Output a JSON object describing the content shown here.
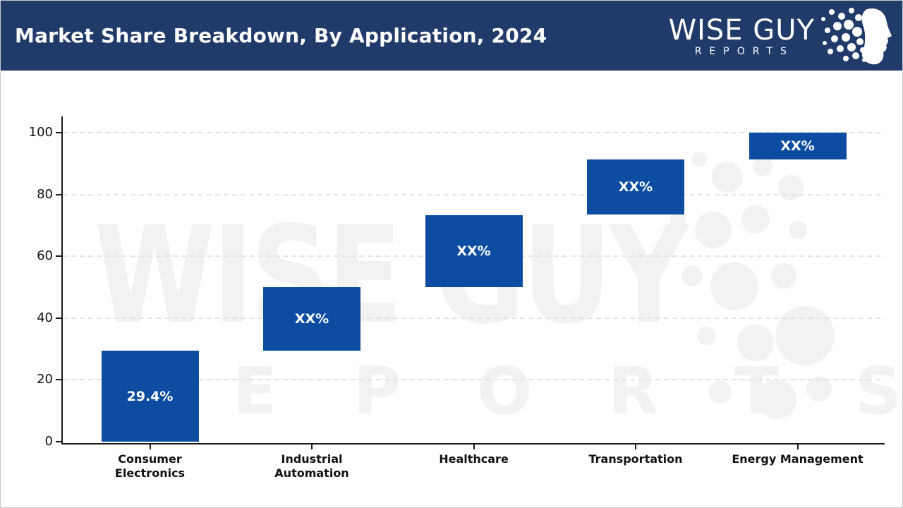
{
  "header": {
    "title": "Market Share Breakdown, By Application, 2024",
    "background_color": "#203a69",
    "logo": {
      "line1": "WISE GUY",
      "line2": "REPORTS"
    }
  },
  "watermark": {
    "line1": "WISE GUY",
    "line2": "R E P O R T S",
    "color": "#f2f2f2"
  },
  "chart_data": {
    "type": "bar",
    "variant": "waterfall",
    "title": "Market Share Breakdown, By Application, 2024",
    "categories": [
      "Consumer Electronics",
      "Industrial Automation",
      "Healthcare",
      "Transportation",
      "Energy Management"
    ],
    "segments": [
      {
        "category": "Consumer Electronics",
        "display": "Consumer\nElectronics",
        "start": 0,
        "end": 29.4,
        "label": "29.4%"
      },
      {
        "category": "Industrial Automation",
        "display": "Industrial\nAutomation",
        "start": 29.4,
        "end": 50,
        "label": "XX%"
      },
      {
        "category": "Healthcare",
        "display": "Healthcare",
        "start": 50,
        "end": 73.4,
        "label": "XX%"
      },
      {
        "category": "Transportation",
        "display": "Transportation",
        "start": 73.4,
        "end": 91.4,
        "label": "XX%"
      },
      {
        "category": "Energy Management",
        "display": "Energy Management",
        "start": 91.4,
        "end": 100,
        "label": "XX%"
      }
    ],
    "yticks": [
      0,
      20,
      40,
      60,
      80,
      100
    ],
    "ylim": [
      0,
      105
    ],
    "xlabel": "",
    "ylabel": "",
    "grid": "horizontal-dashed",
    "legend": "none",
    "bar_color": "#0c4da2",
    "bar_label_color": "#ffffff",
    "axis_color": "#1a1a1a"
  }
}
